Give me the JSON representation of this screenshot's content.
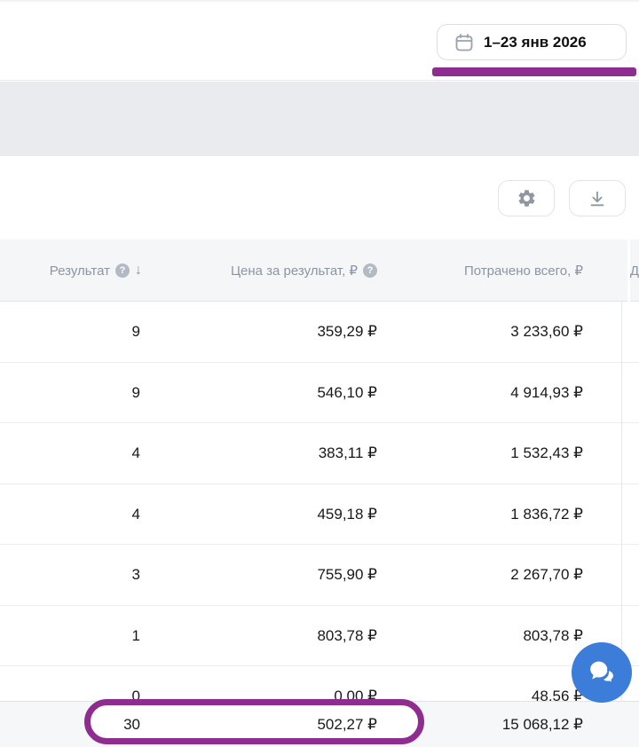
{
  "header": {
    "date_range": "1–23 янв 2026"
  },
  "toolbar": {
    "settings_icon": "gear-icon",
    "download_icon": "download-icon"
  },
  "table": {
    "columns": {
      "result": "Результат",
      "cost_per_result": "Цена за результат, ₽",
      "total_spent": "Потрачено всего, ₽",
      "cut_column": "Д"
    },
    "rows": [
      {
        "result": "9",
        "cost_per_result": "359,29 ₽",
        "total_spent": "3 233,60 ₽"
      },
      {
        "result": "9",
        "cost_per_result": "546,10 ₽",
        "total_spent": "4 914,93 ₽"
      },
      {
        "result": "4",
        "cost_per_result": "383,11 ₽",
        "total_spent": "1 532,43 ₽"
      },
      {
        "result": "4",
        "cost_per_result": "459,18 ₽",
        "total_spent": "1 836,72 ₽"
      },
      {
        "result": "3",
        "cost_per_result": "755,90 ₽",
        "total_spent": "2 267,70 ₽"
      },
      {
        "result": "1",
        "cost_per_result": "803,78 ₽",
        "total_spent": "803,78 ₽"
      },
      {
        "result": "0",
        "cost_per_result": "0,00 ₽",
        "total_spent": "48,56 ₽"
      }
    ],
    "summary": {
      "result": "30",
      "cost_per_result": "502,27 ₽",
      "total_spent": "15 068,12 ₽"
    }
  },
  "icons": {
    "date_picker": "calendar-icon",
    "column_help": "question-circle-icon",
    "sort_descending": "arrow-down-icon",
    "support": "chat-bubbles-icon"
  },
  "colors": {
    "annotation_purple": "#8E2D8F",
    "chat_blue": "#3B7DD8",
    "band_gray": "#EAEBEF",
    "table_header_bg": "#F5F6F8",
    "muted_text": "#8B95A3"
  }
}
